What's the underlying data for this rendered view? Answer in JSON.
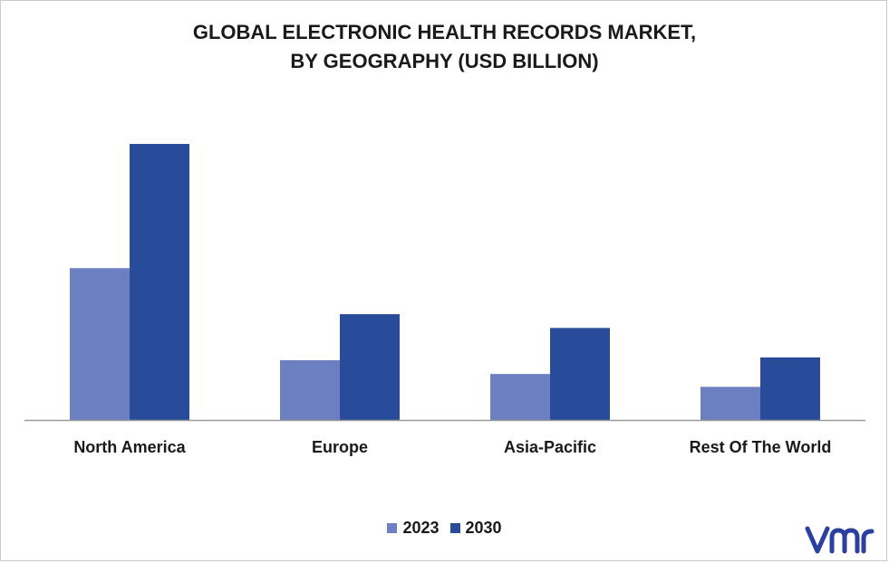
{
  "chart_data": {
    "type": "bar",
    "title_lines": [
      "GLOBAL ELECTRONIC HEALTH RECORDS MARKET,",
      "BY GEOGRAPHY (USD BILLION)"
    ],
    "categories": [
      "North America",
      "Europe",
      "Asia-Pacific",
      "Rest Of The World"
    ],
    "series": [
      {
        "name": "2023",
        "color": "#6b7fc1",
        "values": [
          16.5,
          6.5,
          5.0,
          3.6
        ]
      },
      {
        "name": "2030",
        "color": "#284b9a",
        "values": [
          30.0,
          11.5,
          10.0,
          6.8
        ]
      }
    ],
    "xlabel": "",
    "ylabel": "",
    "ylim": [
      0,
      36
    ],
    "grid": false,
    "legend_position": "bottom-center"
  },
  "logo": {
    "icon": "vmr-logo-icon",
    "text": "vmr",
    "color": "#2a3fa0"
  }
}
